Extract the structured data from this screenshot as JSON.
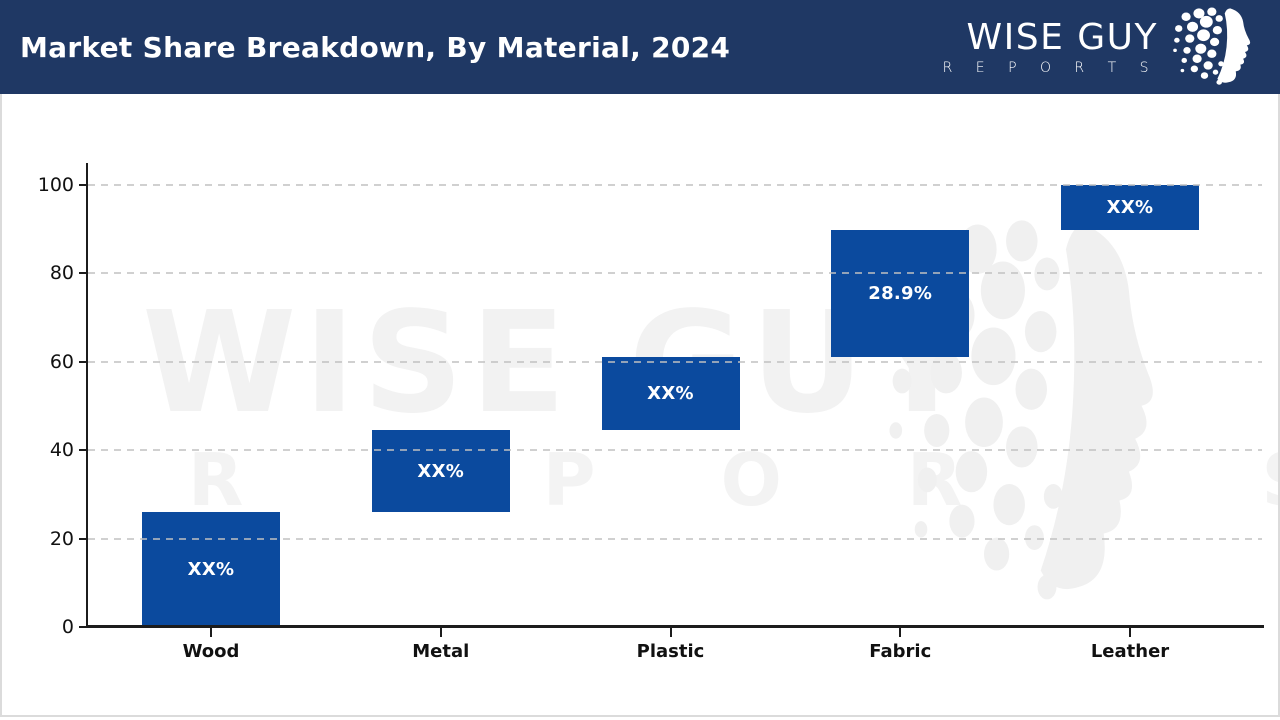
{
  "header": {
    "title": "Market Share Breakdown, By Material, 2024",
    "bg_color": "#1F3864",
    "logo": {
      "line1": "WISE GUY",
      "line2": "R E P O R T S"
    }
  },
  "watermark": {
    "line1": "WISE GUY",
    "line2": "R E P O R T S"
  },
  "chart_data": {
    "type": "bar",
    "variant": "waterfall",
    "title": "Market Share Breakdown, By Material, 2024",
    "categories": [
      "Wood",
      "Metal",
      "Plastic",
      "Fabric",
      "Leather"
    ],
    "bars": [
      {
        "category": "Wood",
        "start": 0,
        "end": 26,
        "label": "XX%"
      },
      {
        "category": "Metal",
        "start": 26,
        "end": 44.5,
        "label": "XX%"
      },
      {
        "category": "Plastic",
        "start": 44.5,
        "end": 61,
        "label": "XX%"
      },
      {
        "category": "Fabric",
        "start": 61,
        "end": 89.9,
        "label": "28.9%"
      },
      {
        "category": "Leather",
        "start": 89.9,
        "end": 100,
        "label": "XX%"
      }
    ],
    "yticks": [
      0,
      20,
      40,
      60,
      80,
      100
    ],
    "ylim": [
      0,
      105
    ],
    "xlabel": "",
    "ylabel": "",
    "grid": {
      "axis": "y",
      "style": "dashed",
      "over_bars": true
    },
    "legend": "none",
    "bar_color": "#0B4A9E",
    "bar_label_color": "#FFFFFF"
  }
}
